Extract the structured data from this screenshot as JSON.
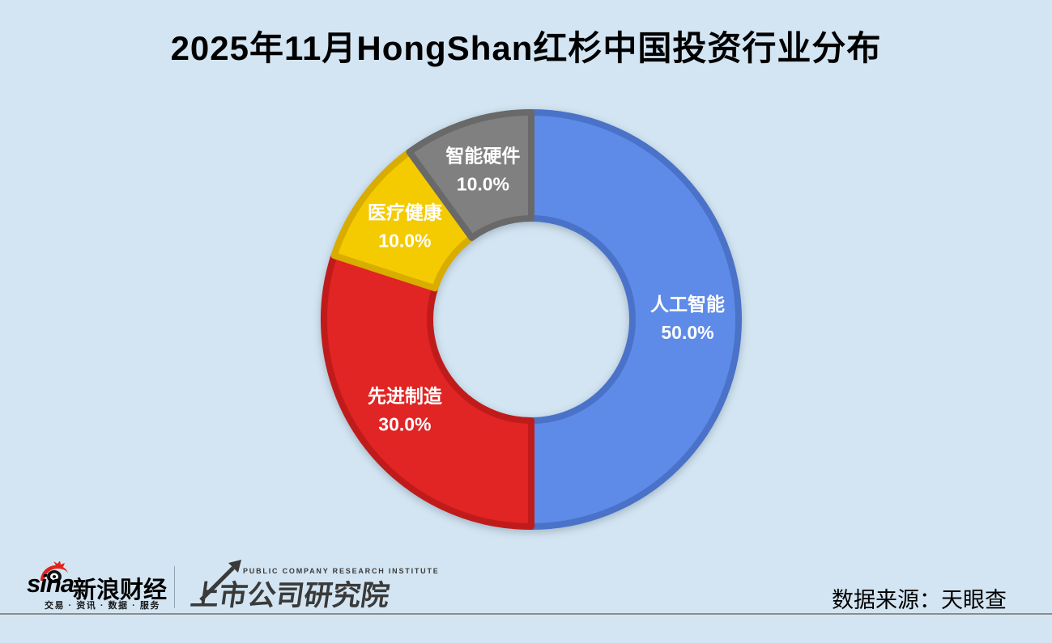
{
  "title": "2025年11月HongShan红杉中国投资行业分布",
  "chart_data": {
    "type": "pie",
    "donut": true,
    "title": "2025年11月HongShan红杉中国投资行业分布",
    "unit": "%",
    "start_angle": "top, clockwise",
    "legend_position": "none",
    "label_color": "#FFFFFF",
    "slices": [
      {
        "label": "人工智能",
        "value": 50.0,
        "pct_label": "50.0%",
        "color": "#5E8BE8",
        "border": "#4A72C8"
      },
      {
        "label": "先进制造",
        "value": 30.0,
        "pct_label": "30.0%",
        "color": "#E12424",
        "border": "#C01B1B"
      },
      {
        "label": "医疗健康",
        "value": 10.0,
        "pct_label": "10.0%",
        "color": "#F4CB00",
        "border": "#D9AC00"
      },
      {
        "label": "智能硬件",
        "value": 10.0,
        "pct_label": "10.0%",
        "color": "#808080",
        "border": "#696969"
      }
    ]
  },
  "footer": {
    "sina": {
      "brand": "sina",
      "brand_cn": "新浪财经",
      "tagline": "交易 · 资讯 · 数据 · 服务"
    },
    "institute": {
      "en": "PUBLIC COMPANY RESEARCH INSTITUTE",
      "cn": "上市公司研究院"
    },
    "source": "数据来源：天眼查"
  },
  "colors": {
    "background": "#D3E5F2",
    "footer_rule": "#8C8C8C",
    "logo_dark": "#3A3A3A",
    "sina_red": "#E2231A"
  }
}
